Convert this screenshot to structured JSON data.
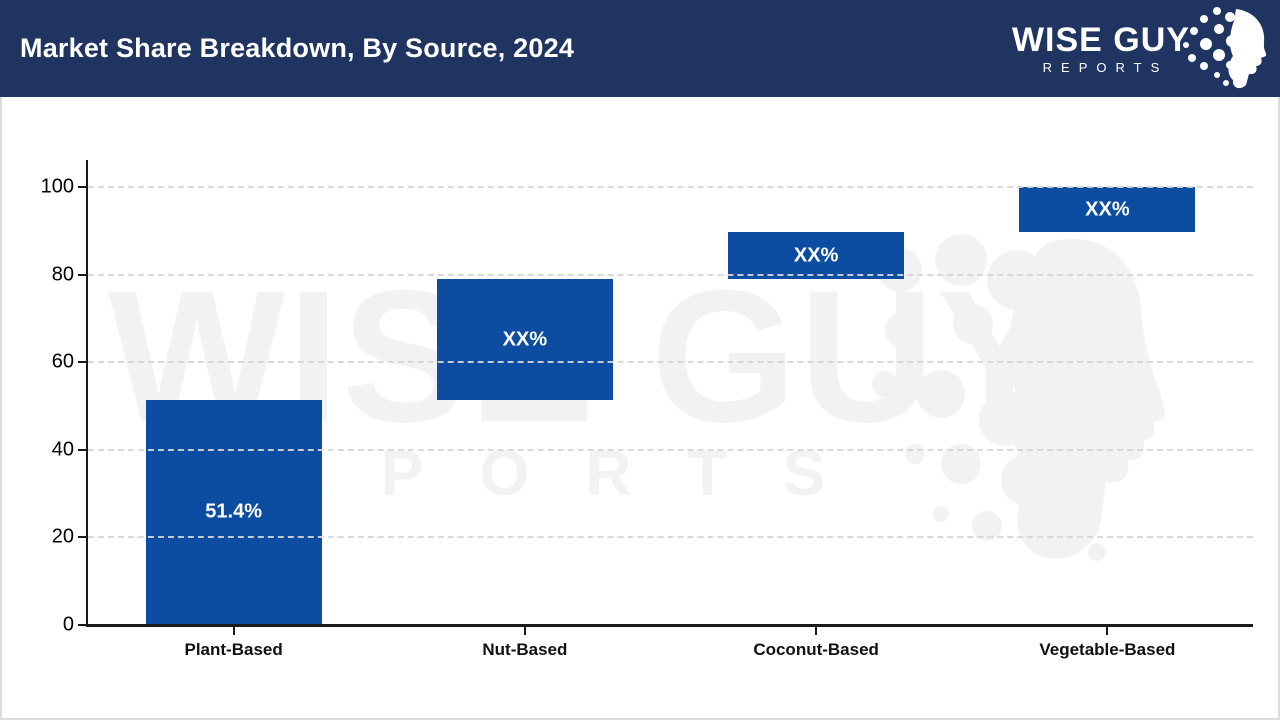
{
  "header": {
    "title": "Market Share Breakdown, By Source, 2024",
    "bg_color": "#203462",
    "logo": {
      "line1": "WISE GUY",
      "line2": "REPORTS"
    }
  },
  "watermark": {
    "line1": "WISE GUY",
    "line2": "REPORTS"
  },
  "chart_data": {
    "type": "bar",
    "subtype": "waterfall",
    "title": "Market Share Breakdown, By Source, 2024",
    "categories": [
      "Plant-Based",
      "Nut-Based",
      "Coconut-Based",
      "Vegetable-Based"
    ],
    "segments": [
      {
        "category": "Plant-Based",
        "start": 0,
        "end": 51.4,
        "label": "51.4%"
      },
      {
        "category": "Nut-Based",
        "start": 51.4,
        "end": 78.9,
        "label": "XX%"
      },
      {
        "category": "Coconut-Based",
        "start": 78.9,
        "end": 89.7,
        "label": "XX%"
      },
      {
        "category": "Vegetable-Based",
        "start": 89.7,
        "end": 100,
        "label": "XX%"
      }
    ],
    "yticks": [
      0,
      20,
      40,
      60,
      80,
      100
    ],
    "ylim": [
      0,
      106
    ],
    "xlabel": "",
    "ylabel": "",
    "grid": true,
    "grid_style": "dashed",
    "grid_color": "#D6D6D6",
    "bar_color": "#0C4DA2",
    "bar_label_color": "#FFFFFF",
    "legend": false
  }
}
